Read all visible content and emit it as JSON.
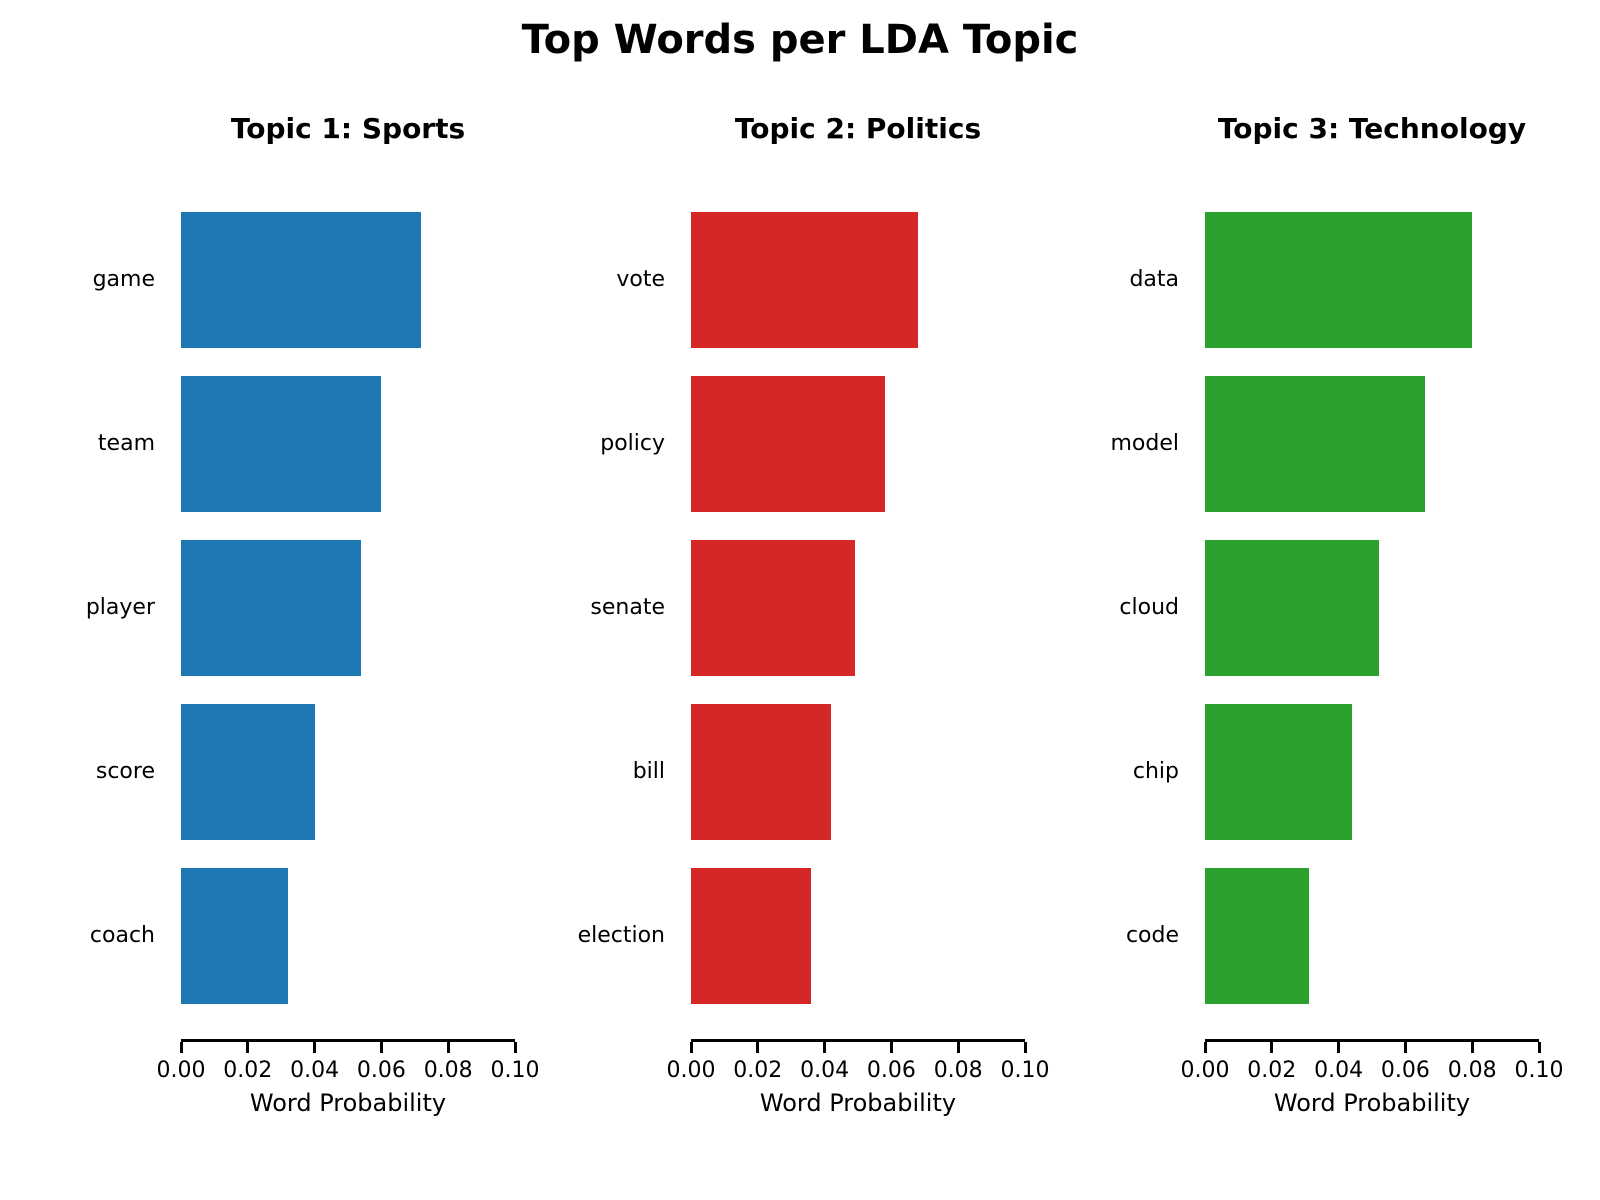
{
  "title": "Top Words per LDA Topic",
  "chart_data": [
    {
      "type": "bar",
      "orientation": "horizontal",
      "title": "Topic 1: Sports",
      "xlabel": "Word Probability",
      "categories": [
        "game",
        "team",
        "player",
        "score",
        "coach"
      ],
      "values": [
        0.072,
        0.06,
        0.054,
        0.04,
        0.032
      ],
      "xlim": [
        0,
        0.1
      ],
      "xtick_labels": [
        "0.00",
        "0.02",
        "0.04",
        "0.06",
        "0.08",
        "0.10"
      ],
      "color": "#1f77b4",
      "grid": false
    },
    {
      "type": "bar",
      "orientation": "horizontal",
      "title": "Topic 2: Politics",
      "xlabel": "Word Probability",
      "categories": [
        "vote",
        "policy",
        "senate",
        "bill",
        "election"
      ],
      "values": [
        0.068,
        0.058,
        0.049,
        0.042,
        0.036
      ],
      "xlim": [
        0,
        0.1
      ],
      "xtick_labels": [
        "0.00",
        "0.02",
        "0.04",
        "0.06",
        "0.08",
        "0.10"
      ],
      "color": "#d62728",
      "grid": false
    },
    {
      "type": "bar",
      "orientation": "horizontal",
      "title": "Topic 3: Technology",
      "xlabel": "Word Probability",
      "categories": [
        "data",
        "model",
        "cloud",
        "chip",
        "code"
      ],
      "values": [
        0.08,
        0.066,
        0.052,
        0.044,
        0.031
      ],
      "xlim": [
        0,
        0.1
      ],
      "xtick_labels": [
        "0.00",
        "0.02",
        "0.04",
        "0.06",
        "0.08",
        "0.10"
      ],
      "color": "#2ca02c",
      "grid": false
    }
  ]
}
